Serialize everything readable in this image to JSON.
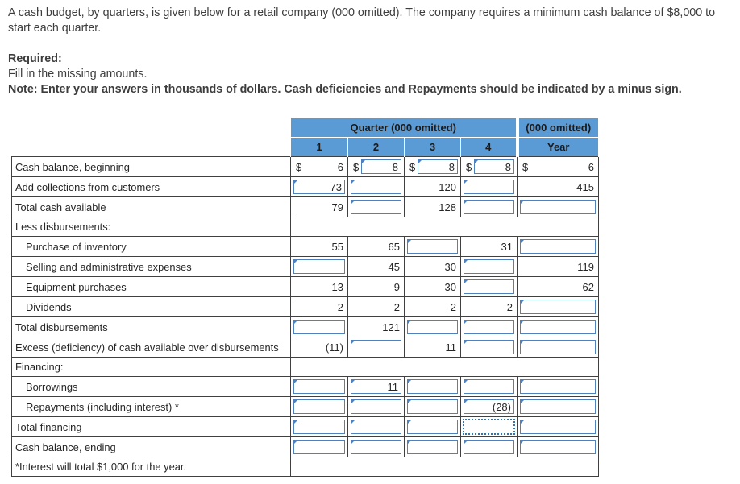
{
  "intro": {
    "paragraph": "A cash budget, by quarters, is given below for a retail company (000 omitted). The company requires a minimum cash balance of $8,000 to start each quarter.",
    "required_label": "Required:",
    "required_text": "Fill in the missing amounts.",
    "note": "Note: Enter your answers in thousands of dollars. Cash deficiencies and Repayments should be indicated by a minus sign."
  },
  "colors": {
    "header_blue": "#5b9bd5",
    "input_border": "#4f81bd",
    "note_red": "#c00000",
    "grid": "#404040"
  },
  "table": {
    "header": {
      "quarter_group": "Quarter (000 omitted)",
      "year_group": "(000 omitted)",
      "quarters": [
        "1",
        "2",
        "3",
        "4"
      ],
      "year": "Year"
    },
    "columns": [
      "q1",
      "q2",
      "q3",
      "q4",
      "year"
    ],
    "rows": [
      {
        "label": "Cash balance, beginning",
        "type": "data",
        "indent": false,
        "cells": [
          {
            "value": "6",
            "kind": "static",
            "dollar": true
          },
          {
            "value": "8",
            "kind": "input",
            "dollar": true,
            "marker": true
          },
          {
            "value": "8",
            "kind": "input",
            "dollar": true,
            "marker": true
          },
          {
            "value": "8",
            "kind": "input",
            "dollar": true,
            "marker": true
          },
          {
            "value": "6",
            "kind": "static",
            "dollar": true
          }
        ]
      },
      {
        "label": "Add collections from customers",
        "type": "data",
        "indent": false,
        "cells": [
          {
            "value": "73",
            "kind": "input",
            "marker": true
          },
          {
            "value": "",
            "kind": "input",
            "marker": true
          },
          {
            "value": "120",
            "kind": "static"
          },
          {
            "value": "",
            "kind": "input",
            "marker": true
          },
          {
            "value": "415",
            "kind": "static"
          }
        ]
      },
      {
        "label": "Total cash available",
        "type": "data",
        "indent": false,
        "cells": [
          {
            "value": "79",
            "kind": "static"
          },
          {
            "value": "",
            "kind": "input",
            "marker": true
          },
          {
            "value": "128",
            "kind": "static"
          },
          {
            "value": "",
            "kind": "input",
            "marker": true
          },
          {
            "value": "",
            "kind": "input",
            "marker": true
          }
        ]
      },
      {
        "label": "Less disbursements:",
        "type": "section",
        "indent": false,
        "cells": []
      },
      {
        "label": "Purchase of inventory",
        "type": "data",
        "indent": true,
        "cells": [
          {
            "value": "55",
            "kind": "static"
          },
          {
            "value": "65",
            "kind": "static"
          },
          {
            "value": "",
            "kind": "input",
            "marker": true
          },
          {
            "value": "31",
            "kind": "static"
          },
          {
            "value": "",
            "kind": "input",
            "marker": true
          }
        ]
      },
      {
        "label": "Selling and administrative expenses",
        "type": "data",
        "indent": true,
        "cells": [
          {
            "value": "",
            "kind": "input",
            "marker": true
          },
          {
            "value": "45",
            "kind": "static"
          },
          {
            "value": "30",
            "kind": "static"
          },
          {
            "value": "",
            "kind": "input",
            "marker": true
          },
          {
            "value": "119",
            "kind": "static"
          }
        ]
      },
      {
        "label": "Equipment purchases",
        "type": "data",
        "indent": true,
        "cells": [
          {
            "value": "13",
            "kind": "static"
          },
          {
            "value": "9",
            "kind": "static"
          },
          {
            "value": "30",
            "kind": "static"
          },
          {
            "value": "",
            "kind": "input",
            "marker": true
          },
          {
            "value": "62",
            "kind": "static"
          }
        ]
      },
      {
        "label": "Dividends",
        "type": "data",
        "indent": true,
        "cells": [
          {
            "value": "2",
            "kind": "static"
          },
          {
            "value": "2",
            "kind": "static"
          },
          {
            "value": "2",
            "kind": "static"
          },
          {
            "value": "2",
            "kind": "static"
          },
          {
            "value": "",
            "kind": "input",
            "marker": true
          }
        ]
      },
      {
        "label": "Total disbursements",
        "type": "data",
        "indent": false,
        "cells": [
          {
            "value": "",
            "kind": "input",
            "marker": true
          },
          {
            "value": "121",
            "kind": "static"
          },
          {
            "value": "",
            "kind": "input",
            "marker": true
          },
          {
            "value": "",
            "kind": "input",
            "marker": true
          },
          {
            "value": "",
            "kind": "input",
            "marker": true
          }
        ]
      },
      {
        "label": "Excess (deficiency) of cash available over disbursements",
        "type": "data",
        "indent": false,
        "cells": [
          {
            "value": "(11)",
            "kind": "static"
          },
          {
            "value": "",
            "kind": "input",
            "marker": true
          },
          {
            "value": "11",
            "kind": "static"
          },
          {
            "value": "",
            "kind": "input",
            "marker": true
          },
          {
            "value": "",
            "kind": "input",
            "marker": true
          }
        ]
      },
      {
        "label": "Financing:",
        "type": "section",
        "indent": false,
        "cells": []
      },
      {
        "label": "Borrowings",
        "type": "data",
        "indent": true,
        "cells": [
          {
            "value": "",
            "kind": "input",
            "marker": true
          },
          {
            "value": "11",
            "kind": "input",
            "marker": true
          },
          {
            "value": "",
            "kind": "input",
            "marker": true
          },
          {
            "value": "",
            "kind": "input",
            "marker": true
          },
          {
            "value": "",
            "kind": "input",
            "marker": true
          }
        ]
      },
      {
        "label": "Repayments (including interest) *",
        "type": "data",
        "indent": true,
        "cells": [
          {
            "value": "",
            "kind": "input",
            "marker": true
          },
          {
            "value": "",
            "kind": "input",
            "marker": true
          },
          {
            "value": "",
            "kind": "input",
            "marker": true
          },
          {
            "value": "(28)",
            "kind": "input",
            "marker": true
          },
          {
            "value": "",
            "kind": "input",
            "marker": true
          }
        ]
      },
      {
        "label": "Total financing",
        "type": "data",
        "indent": false,
        "cells": [
          {
            "value": "",
            "kind": "input",
            "marker": true
          },
          {
            "value": "",
            "kind": "input",
            "marker": true
          },
          {
            "value": "",
            "kind": "input",
            "marker": true
          },
          {
            "value": "",
            "kind": "active"
          },
          {
            "value": "",
            "kind": "input",
            "marker": true
          }
        ]
      },
      {
        "label": "Cash balance, ending",
        "type": "data",
        "indent": false,
        "cells": [
          {
            "value": "",
            "kind": "input",
            "marker": true
          },
          {
            "value": "",
            "kind": "input",
            "marker": true
          },
          {
            "value": "",
            "kind": "input",
            "marker": true
          },
          {
            "value": "",
            "kind": "input",
            "marker": true
          },
          {
            "value": "",
            "kind": "input",
            "marker": true
          }
        ]
      },
      {
        "label": "*Interest will total $1,000 for the year.",
        "type": "footer",
        "indent": false,
        "cells": []
      }
    ]
  }
}
